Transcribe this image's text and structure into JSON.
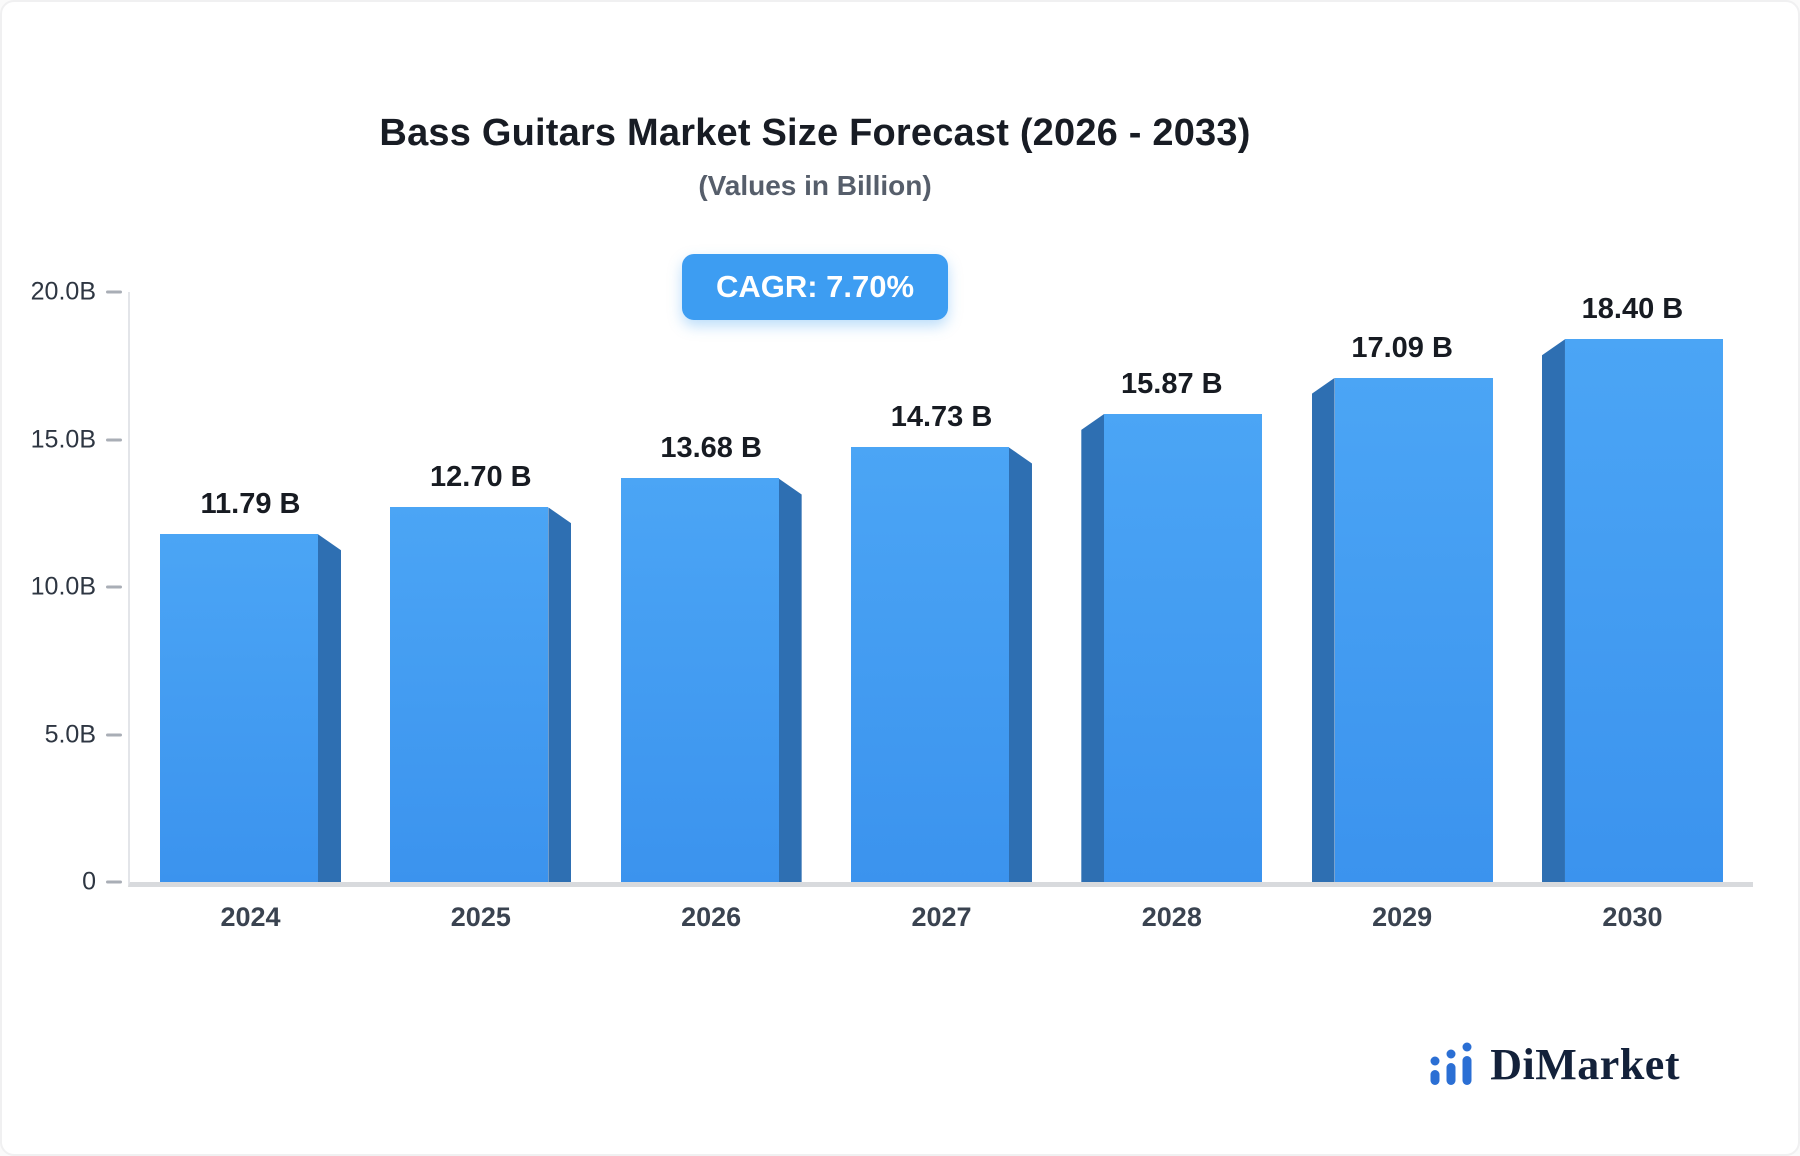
{
  "header": {
    "title": "Bass Guitars Market Size Forecast (2026 - 2033)",
    "subtitle": "(Values in Billion)",
    "cagr_badge": "CAGR: 7.70%"
  },
  "footer": {
    "brand": "DiMarket"
  },
  "chart_data": {
    "type": "bar",
    "title": "Bass Guitars Market Size Forecast (2026 - 2033)",
    "subtitle": "(Values in Billion)",
    "cagr": "7.70%",
    "unit": "Billion",
    "categories": [
      "2024",
      "2025",
      "2026",
      "2027",
      "2028",
      "2029",
      "2030"
    ],
    "values": [
      11.79,
      12.7,
      13.68,
      14.73,
      15.87,
      17.09,
      18.4
    ],
    "value_labels": [
      "11.79 B",
      "12.70 B",
      "13.68 B",
      "14.73 B",
      "15.87 B",
      "17.09 B",
      "18.40 B"
    ],
    "xlabel": "",
    "ylabel": "",
    "ylim": [
      0,
      20
    ],
    "yticks": [
      {
        "value": 20,
        "label": "20.0B"
      },
      {
        "value": 15,
        "label": "15.0B"
      },
      {
        "value": 10,
        "label": "10.0B"
      },
      {
        "value": 5,
        "label": "5.0B"
      },
      {
        "value": 0,
        "label": "0"
      }
    ],
    "grid": false,
    "legend": false,
    "bar_style": "3d-extruded",
    "colors": {
      "bar_top": "#4ba5f5",
      "bar_bottom": "#3b93ee",
      "bar_side": "#2e6fb2",
      "badge_bg": "#3d9df2",
      "badge_text": "#ffffff",
      "logo_blue": "#2b6fd4",
      "logo_text": "#13213a"
    }
  }
}
